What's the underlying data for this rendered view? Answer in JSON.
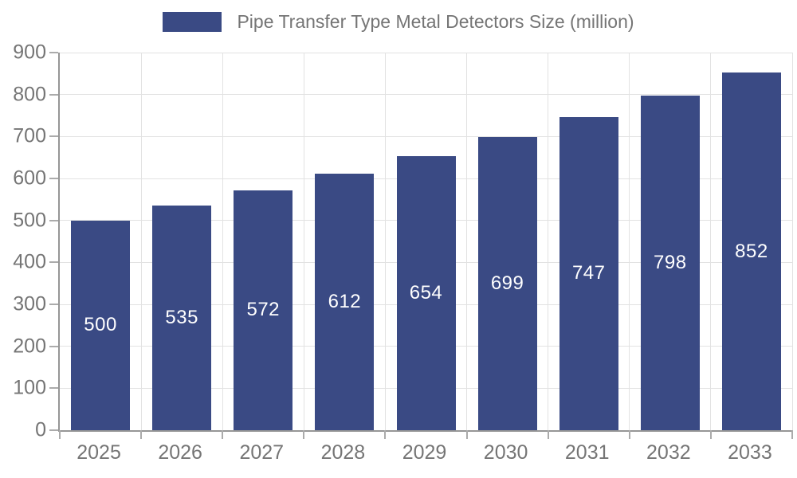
{
  "legend": {
    "label": "Pipe Transfer Type Metal Detectors Size (million)"
  },
  "chart_data": {
    "type": "bar",
    "title": "Pipe Transfer Type Metal Detectors Size (million)",
    "categories": [
      "2025",
      "2026",
      "2027",
      "2028",
      "2029",
      "2030",
      "2031",
      "2032",
      "2033"
    ],
    "values": [
      500,
      535,
      572,
      612,
      654,
      699,
      747,
      798,
      852
    ],
    "xlabel": "",
    "ylabel": "",
    "ylim": [
      0,
      900
    ],
    "ytick_interval": 100,
    "ytick_labels": [
      "0",
      "100",
      "200",
      "300",
      "400",
      "500",
      "600",
      "700",
      "800",
      "900"
    ],
    "grid": true,
    "legend_position": "top-center",
    "value_labels": "inside-center",
    "colors": {
      "bar": "#3A4A84",
      "value_label": "#FFFFFF",
      "axis_label": "#757575",
      "legend_text": "#757575",
      "gridline": "#E2E2E2",
      "axis_line": "#969696",
      "background": "#FFFFFF"
    }
  }
}
